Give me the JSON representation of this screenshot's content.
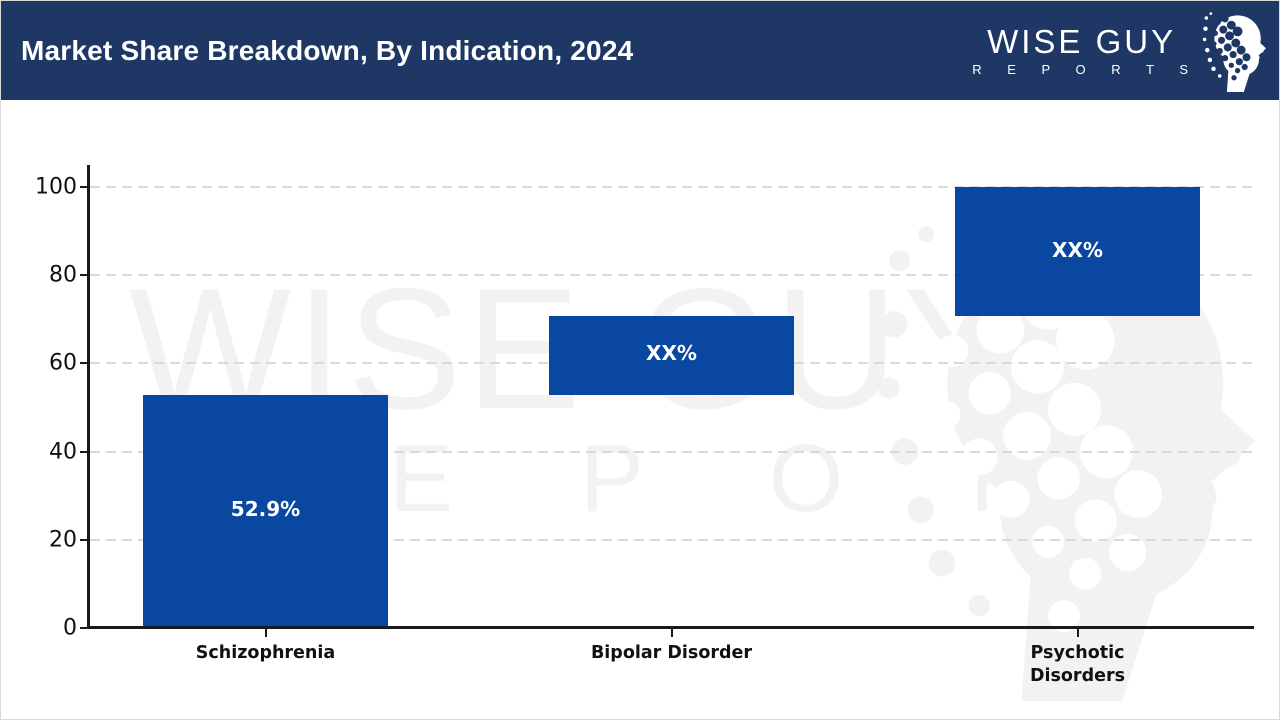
{
  "header": {
    "title": "Market Share Breakdown, By Indication, 2024",
    "logo": {
      "primary": "WISE GUY",
      "secondary": "R E P O R T S"
    }
  },
  "watermark": {
    "primary": "WISE GUY",
    "secondary": "R E P O R T S"
  },
  "colors": {
    "header_bg": "#1f3764",
    "bar": "#0a47a1",
    "bar_label": "#ffffff",
    "grid": "#d9d9d9",
    "axis": "#1a1a1a",
    "tick_label": "#111111",
    "watermark": "#f2f2f2",
    "frame_border": "#d9d9d9"
  },
  "chart_data": {
    "type": "bar",
    "subtype": "floating-segment-waterfall",
    "title": "Market Share Breakdown, By Indication, 2024",
    "categories": [
      "Schizophrenia",
      "Bipolar Disorder",
      "Psychotic\nDisorders"
    ],
    "segments": [
      {
        "category": "Schizophrenia",
        "start": 0,
        "end": 52.9,
        "label": "52.9%"
      },
      {
        "category": "Bipolar Disorder",
        "start": 52.9,
        "end": 70.7,
        "label": "XX%"
      },
      {
        "category": "Psychotic Disorders",
        "start": 70.7,
        "end": 100,
        "label": "XX%"
      }
    ],
    "xlabel": "",
    "ylabel": "",
    "ylim": [
      0,
      100
    ],
    "y_ticks": [
      0,
      20,
      40,
      60,
      80,
      100
    ],
    "grid": "horizontal-dashed",
    "legend": "none"
  }
}
